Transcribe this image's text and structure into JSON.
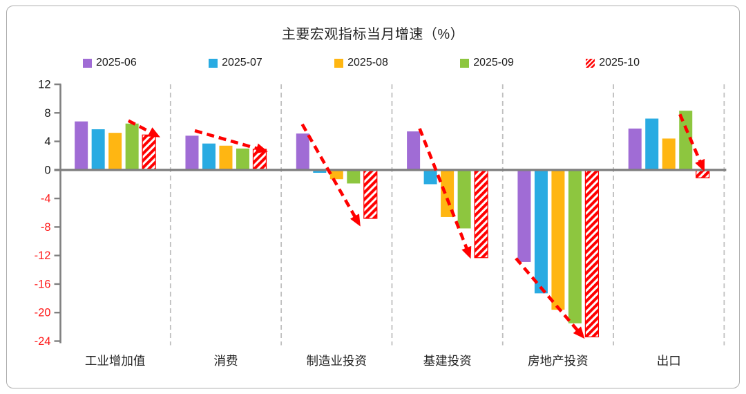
{
  "title": "主要宏观指标当月增速（%）",
  "chart_data": {
    "type": "bar",
    "title": "主要宏观指标当月增速（%）",
    "categories": [
      "工业增加值",
      "消费",
      "制造业投资",
      "基建投资",
      "房地产投资",
      "出口"
    ],
    "series": [
      {
        "name": "2025-06",
        "color": "#A06CD5",
        "hatched": false,
        "values": [
          6.8,
          4.8,
          5.1,
          5.4,
          -12.9,
          5.8
        ]
      },
      {
        "name": "2025-07",
        "color": "#29ABE2",
        "hatched": false,
        "values": [
          5.7,
          3.7,
          -0.4,
          -2.0,
          -17.3,
          7.2
        ]
      },
      {
        "name": "2025-08",
        "color": "#FFB612",
        "hatched": false,
        "values": [
          5.2,
          3.4,
          -1.3,
          -6.6,
          -19.6,
          4.4
        ]
      },
      {
        "name": "2025-09",
        "color": "#8DC63F",
        "hatched": false,
        "values": [
          6.5,
          3.0,
          -1.9,
          -8.2,
          -21.5,
          8.3
        ]
      },
      {
        "name": "2025-10",
        "color": "#FF0000",
        "hatched": true,
        "values": [
          4.9,
          2.9,
          -6.8,
          -12.3,
          -23.4,
          -1.1
        ]
      }
    ],
    "ylim": [
      -24,
      12
    ],
    "ytick_step": 4,
    "grid": false,
    "legend_position": "top",
    "axis_color": "#808080",
    "separator_color": "#BFBFBF",
    "positive_label_color": "#1A1A1A",
    "negative_label_color": "#FF1A1A",
    "category_label_color": "#262626",
    "arrow_color": "#FF0000",
    "trend_arrows": [
      {
        "group": 0,
        "from_x": 0.62,
        "from_value": 6.9,
        "to_x": 0.88,
        "to_value": 4.8
      },
      {
        "group": 1,
        "from_x": 0.22,
        "from_value": 5.5,
        "to_x": 0.85,
        "to_value": 2.7
      },
      {
        "group": 2,
        "from_x": 0.19,
        "from_value": 6.4,
        "to_x": 0.7,
        "to_value": -7.5
      },
      {
        "group": 3,
        "from_x": 0.25,
        "from_value": 5.8,
        "to_x": 0.7,
        "to_value": -12.0
      },
      {
        "group": 4,
        "from_x": 0.12,
        "from_value": -12.4,
        "to_x": 0.72,
        "to_value": -23.3
      },
      {
        "group": 5,
        "from_x": 0.6,
        "from_value": 7.8,
        "to_x": 0.81,
        "to_value": 0.2
      }
    ]
  }
}
